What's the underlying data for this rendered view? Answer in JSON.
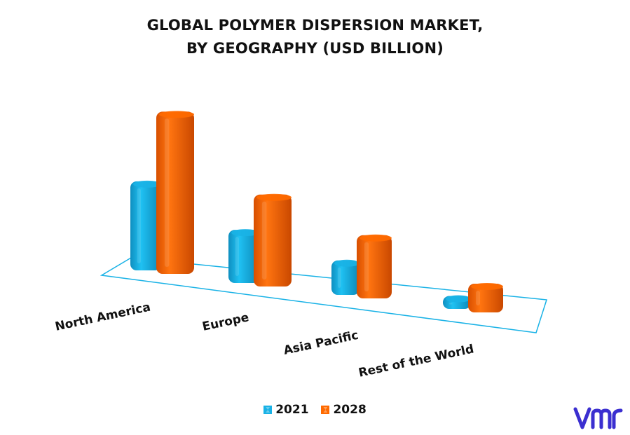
{
  "title_lines": [
    "GLOBAL POLYMER DISPERSION MARKET,",
    "BY GEOGRAPHY (USD BILLION)"
  ],
  "chart_data": {
    "type": "bar",
    "title": "GLOBAL POLYMER DISPERSION MARKET, BY GEOGRAPHY (USD BILLION)",
    "categories": [
      "North America",
      "Europe",
      "Asia Pacific",
      "Rest of the World"
    ],
    "series": [
      {
        "name": "2021",
        "values": [
          6.2,
          3.7,
          2.4,
          0.9
        ],
        "color": "#19b2e6"
      },
      {
        "name": "2028",
        "values": [
          11.3,
          6.4,
          4.4,
          2.0
        ],
        "color": "#ff6a00"
      }
    ],
    "ylim": [
      0,
      12
    ],
    "grid": false,
    "legend_position": "bottom",
    "style": "3d-bars"
  },
  "legend": {
    "items": [
      "2021",
      "2028"
    ]
  },
  "colors": {
    "series_2021": "#19b2e6",
    "series_2028": "#ff6a00",
    "floor": "#19b2e6"
  },
  "logo": {
    "icon": "vmr-logo-icon",
    "color": "#3b2fd0"
  }
}
